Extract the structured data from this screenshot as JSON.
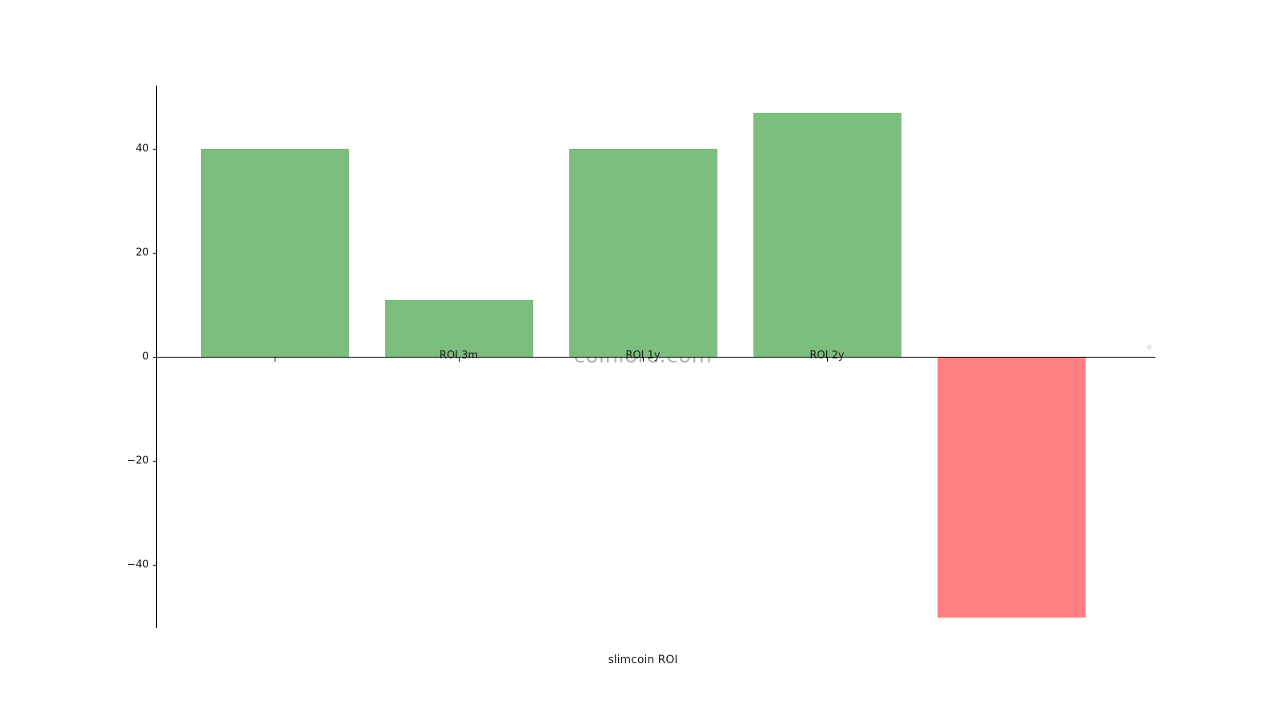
{
  "chart_data": {
    "type": "bar",
    "title": "slimcoin ROI",
    "watermark": "coinlore.com",
    "categories": [
      "",
      "ROI 3m",
      "ROI 1y",
      "ROI 2y",
      ""
    ],
    "values": [
      40,
      11,
      40,
      47,
      -50
    ],
    "x_tick_marks": [
      true,
      true,
      true,
      true,
      false
    ],
    "yticks": [
      40,
      20,
      0,
      -20,
      -40
    ],
    "ytick_labels": [
      "40",
      "20",
      "0",
      "−20",
      "−40"
    ],
    "ylim": [
      -52,
      52
    ],
    "xlabel": "",
    "ylabel": "",
    "grid": false,
    "legend_position": "none",
    "positive_color": "#7CBE7D",
    "negative_color": "#FD8181",
    "axis_color": "#000000",
    "text_color": "#1a1a1a",
    "watermark_color": "#828282"
  }
}
